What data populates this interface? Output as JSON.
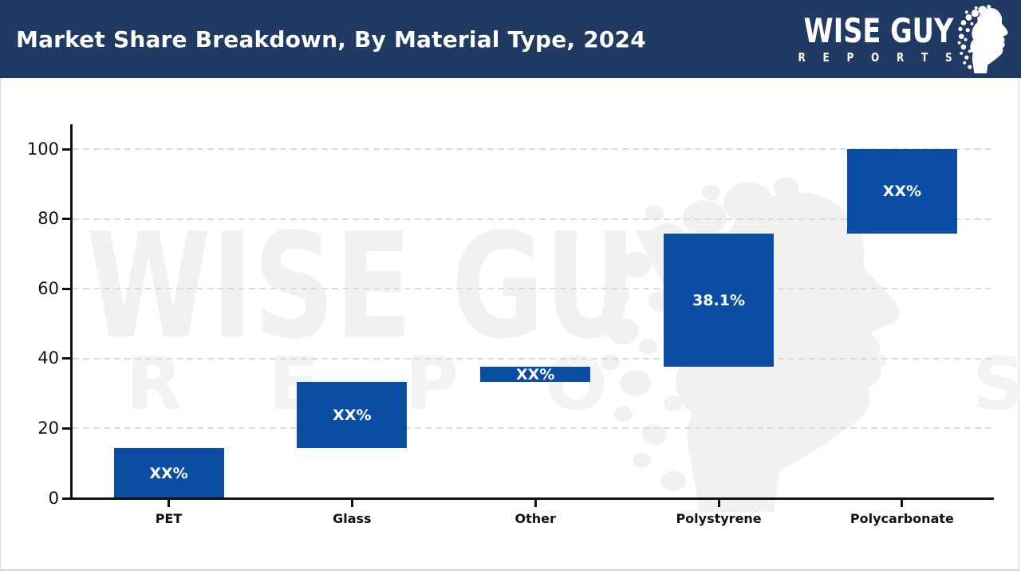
{
  "header": {
    "title": "Market Share Breakdown, By Material Type, 2024",
    "logo": {
      "line1": "WISE GUY",
      "line2": "R E P O R T S"
    }
  },
  "watermark": {
    "line1": "WISE GUY",
    "line2": "R E P O R T S"
  },
  "colors": {
    "header_bg": "#203a64",
    "bar_blue": "#0b4da2",
    "gridline": "#dcdcdc",
    "axis": "#111111",
    "bar_label": "#ffffff",
    "watermark_gray": "#f1f1f1"
  },
  "chart_data": {
    "type": "bar",
    "subtype": "floating-waterfall",
    "title": "Market Share Breakdown, By Material Type, 2024",
    "xlabel": "",
    "ylabel": "",
    "categories": [
      "PET",
      "Glass",
      "Other",
      "Polystyrene",
      "Polycarbonate"
    ],
    "segments": [
      {
        "category": "PET",
        "start": 0,
        "end": 14.3,
        "label": "XX%"
      },
      {
        "category": "Glass",
        "start": 14.3,
        "end": 33.3,
        "label": "XX%"
      },
      {
        "category": "Other",
        "start": 33.3,
        "end": 37.6,
        "label": "XX%"
      },
      {
        "category": "Polystyrene",
        "start": 37.6,
        "end": 75.7,
        "label": "38.1%"
      },
      {
        "category": "Polycarbonate",
        "start": 75.7,
        "end": 100,
        "label": "XX%"
      }
    ],
    "yticks": [
      0,
      20,
      40,
      60,
      80,
      100
    ],
    "ylim": [
      0,
      107
    ],
    "grid": "horizontal-dashed",
    "legend": "none",
    "bar_color": "#0b4da2"
  }
}
